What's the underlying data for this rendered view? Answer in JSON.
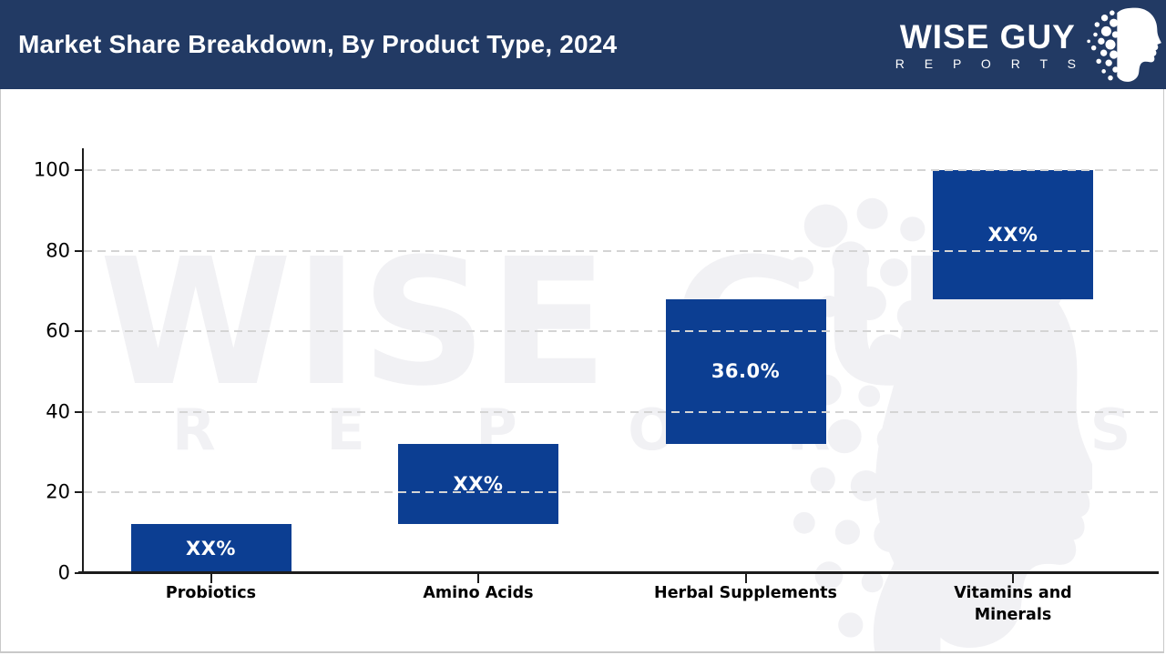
{
  "header": {
    "title": "Market Share Breakdown, By Product Type, 2024",
    "logo": {
      "wordmark": "WISE GUY",
      "sub": "R E P O R T S"
    }
  },
  "watermark": {
    "wordmark": "WISE GUY",
    "sub": "R E P O R T S"
  },
  "chart_data": {
    "type": "bar",
    "variant": "floating-waterfall",
    "title": "Market Share Breakdown, By Product Type, 2024",
    "xlabel": "",
    "ylabel": "",
    "categories": [
      "Probiotics",
      "Amino Acids",
      "Herbal Supplements",
      "Vitamins and\nMinerals"
    ],
    "bars": [
      {
        "category": "Probiotics",
        "start": 0,
        "end": 12,
        "value": 12,
        "label": "XX%"
      },
      {
        "category": "Amino Acids",
        "start": 12,
        "end": 32,
        "value": 20,
        "label": "XX%"
      },
      {
        "category": "Herbal Supplements",
        "start": 32,
        "end": 68,
        "value": 36,
        "label": "36.0%"
      },
      {
        "category": "Vitamins and Minerals",
        "start": 68,
        "end": 100,
        "value": 32,
        "label": "XX%"
      }
    ],
    "y_ticks": [
      "0",
      "20",
      "40",
      "60",
      "80",
      "100"
    ],
    "ylim": [
      0,
      105.5
    ],
    "grid": "horizontal-dashed",
    "legend": "none",
    "colors": {
      "bar": "#0c3e92",
      "bar_label": "#ffffff",
      "grid": "#d4d4d4",
      "axis": "#1c1c1c",
      "header_bg": "#223a64",
      "watermark": "#f1f1f4"
    }
  }
}
